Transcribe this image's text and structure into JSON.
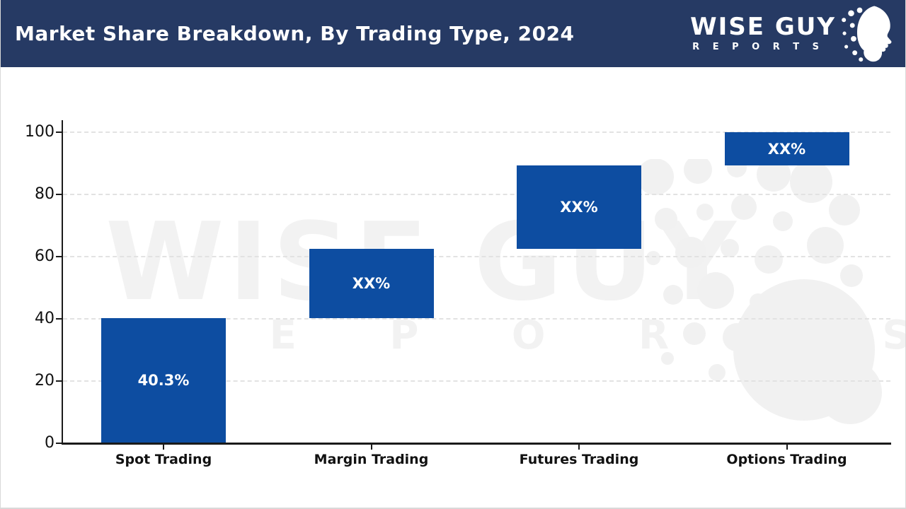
{
  "header": {
    "title": "Market Share Breakdown, By Trading Type, 2024",
    "logo": {
      "line1": "WISE GUY",
      "line2": "R E P O R T S"
    }
  },
  "watermark": {
    "line1": "WISE GUY",
    "line2": "R E P O R T S"
  },
  "chart_data": {
    "type": "bar",
    "subtype": "waterfall",
    "title": "Market Share Breakdown, By Trading Type, 2024",
    "categories": [
      "Spot Trading",
      "Margin Trading",
      "Futures Trading",
      "Options Trading"
    ],
    "segments": [
      {
        "category": "Spot Trading",
        "start": 0,
        "end": 40.3,
        "label": "40.3%"
      },
      {
        "category": "Margin Trading",
        "start": 40.3,
        "end": 62.5,
        "label": "XX%"
      },
      {
        "category": "Futures Trading",
        "start": 62.5,
        "end": 89.3,
        "label": "XX%"
      },
      {
        "category": "Options Trading",
        "start": 89.3,
        "end": 100,
        "label": "XX%"
      }
    ],
    "yticks": [
      0,
      20,
      40,
      60,
      80,
      100
    ],
    "ylim": [
      0,
      100
    ],
    "xlabel": "",
    "ylabel": "",
    "grid": "horizontal-dashed",
    "legend": "none",
    "bar_color": "#0d4da1",
    "value_label_color": "#ffffff"
  },
  "colors": {
    "header_bg": "#263a64",
    "bar": "#0d4da1",
    "grid": "#e2e2e2",
    "watermark": "#f2f2f2",
    "axis": "#1a1a1a"
  }
}
